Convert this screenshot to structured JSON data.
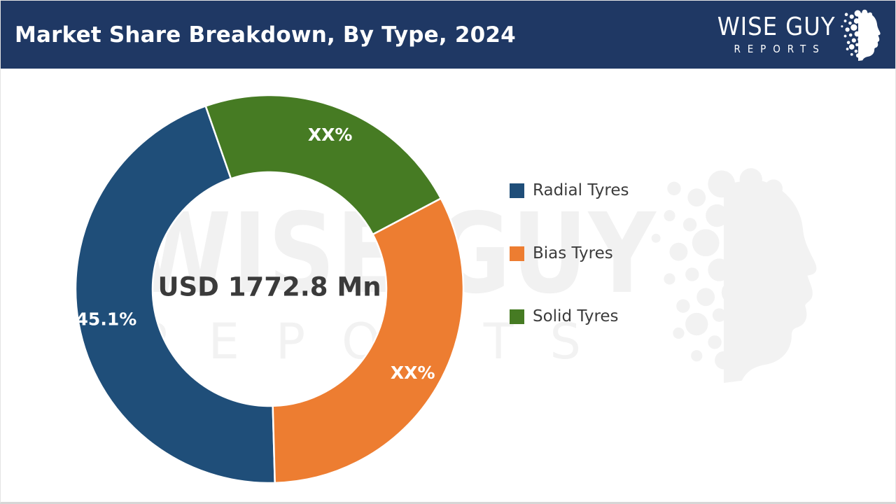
{
  "header": {
    "title": "Market Share Breakdown, By Type, 2024",
    "logo": {
      "line1": "WISE GUY",
      "line2": "REPORTS"
    }
  },
  "watermark": {
    "line1": "WISE GUY",
    "line2": "REPORTS"
  },
  "colors": {
    "header_bg": "#1f3864",
    "radial": "#1f4e79",
    "bias": "#ed7d31",
    "solid": "#467b23",
    "slice_label": "#ffffff",
    "center_label": "#3a3a3a",
    "watermark": "#f1f1f1"
  },
  "chart_data": {
    "type": "pie",
    "subtype": "donut",
    "title": "Market Share Breakdown, By Type, 2024",
    "center_label": "USD 1772.8 Mn",
    "start_angle_deg": 178.4,
    "clockwise": true,
    "legend_position": "right",
    "slices": [
      {
        "name": "Radial Tyres",
        "value": 45.1,
        "label": "45.1%",
        "color": "#1f4e79"
      },
      {
        "name": "Solid Tyres",
        "value": 22.6,
        "label": "XX%",
        "color": "#467b23"
      },
      {
        "name": "Bias Tyres",
        "value": 32.3,
        "label": "XX%",
        "color": "#ed7d31"
      }
    ],
    "legend": [
      {
        "label": "Radial Tyres",
        "color": "#1f4e79"
      },
      {
        "label": "Bias Tyres",
        "color": "#ed7d31"
      },
      {
        "label": "Solid Tyres",
        "color": "#467b23"
      }
    ]
  }
}
